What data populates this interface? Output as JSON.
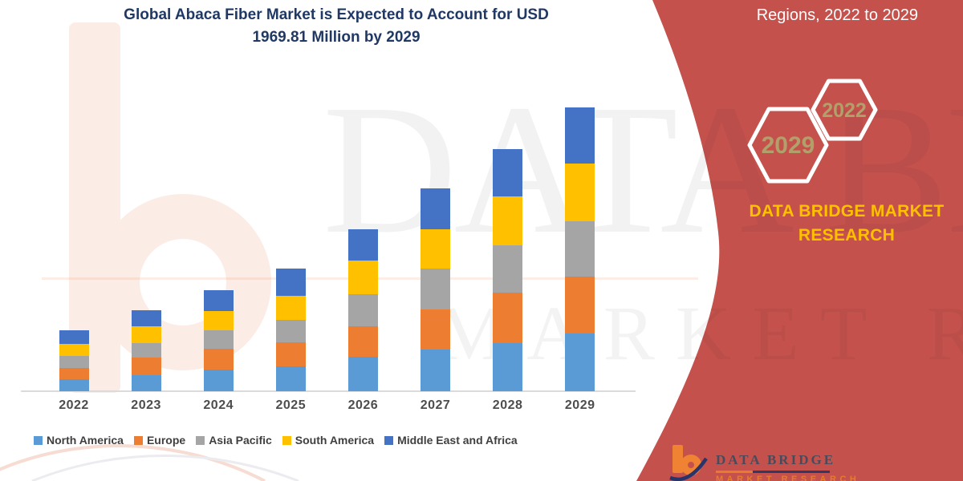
{
  "header": {
    "title_line1": "Global Abaca Fiber Market is Expected to Account for USD",
    "title_line2": "1969.81 Million by 2029"
  },
  "panel": {
    "regions_label": "Regions, 2022 to 2029",
    "hex_front_year": "2029",
    "hex_back_year": "2022",
    "brand_line1": "DATA BRIDGE MARKET",
    "brand_line2": "RESEARCH",
    "colors": {
      "panel_red": "#C5514C",
      "brand_yellow": "#FFC000",
      "hex_year_text": "#B1A06A",
      "hex_outline": "#FFFFFF"
    }
  },
  "watermark": {
    "line1": "DATA BRIDGE",
    "line2": "MARKET RESEARCH"
  },
  "footer_logo": {
    "name_text": "DATA BRIDGE",
    "sub_text": "MARKET RESEARCH"
  },
  "chart_data": {
    "type": "bar",
    "stacked": true,
    "unit": "USD Million",
    "values_estimated": true,
    "title": "Global Abaca Fiber Market is Expected to Account for USD 1969.81 Million by 2029",
    "subtitle": "Regions, 2022 to 2029",
    "categories": [
      "2022",
      "2023",
      "2024",
      "2025",
      "2026",
      "2027",
      "2028",
      "2029"
    ],
    "series": [
      {
        "name": "North America",
        "color": "#5B9BD5",
        "values": [
          84,
          111,
          150,
          172,
          239,
          289,
          334,
          401
        ]
      },
      {
        "name": "Europe",
        "color": "#ED7D31",
        "values": [
          78,
          122,
          145,
          167,
          211,
          278,
          351,
          395
        ]
      },
      {
        "name": "Asia Pacific",
        "color": "#A5A5A5",
        "values": [
          83,
          100,
          128,
          156,
          223,
          284,
          328,
          384
        ]
      },
      {
        "name": "South America",
        "color": "#FFC000",
        "values": [
          83,
          117,
          134,
          167,
          234,
          273,
          339,
          401
        ]
      },
      {
        "name": "Middle East and Africa",
        "color": "#4472C4",
        "values": [
          95,
          111,
          145,
          189,
          217,
          284,
          328,
          389
        ]
      }
    ],
    "totals_musd": [
      423,
      561,
      702,
      851,
      1124,
      1408,
      1680,
      1970
    ],
    "ylim": [
      0,
      2000
    ],
    "y_axis_visible": false,
    "gridlines": false,
    "legend_position": "bottom"
  }
}
